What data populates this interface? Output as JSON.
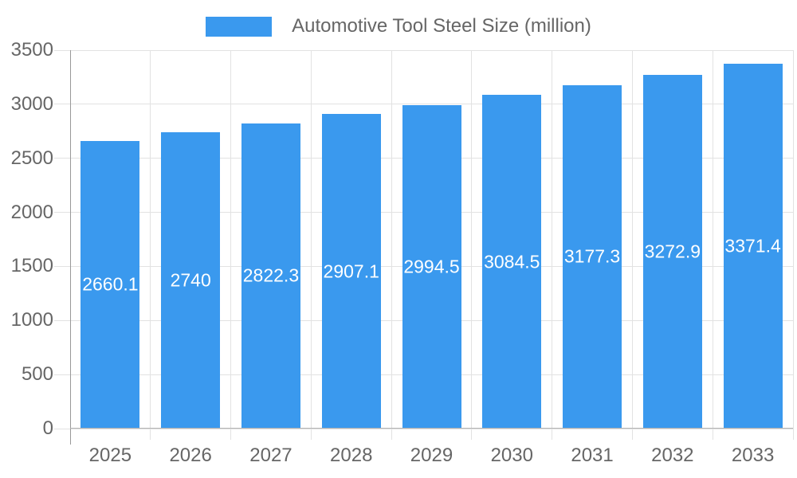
{
  "chart_data": {
    "type": "bar",
    "title": "Automotive Tool Steel Size (million)",
    "categories": [
      "2025",
      "2026",
      "2027",
      "2028",
      "2029",
      "2030",
      "2031",
      "2032",
      "2033"
    ],
    "values": [
      2660.1,
      2740,
      2822.3,
      2907.1,
      2994.5,
      3084.5,
      3177.3,
      3272.9,
      3371.4
    ],
    "bar_labels": [
      "2660.1",
      "2740",
      "2822.3",
      "2907.1",
      "2994.5",
      "3084.5",
      "3177.3",
      "3272.9",
      "3371.4"
    ],
    "xlabel": "",
    "ylabel": "",
    "ylim": [
      0,
      3500
    ],
    "yticks": [
      0,
      500,
      1000,
      1500,
      2000,
      2500,
      3000,
      3500
    ],
    "ytick_labels": [
      "0",
      "500",
      "1000",
      "1500",
      "2000",
      "2500",
      "3000",
      "3500"
    ],
    "grid": true,
    "legend_position": "top",
    "bar_color": "#3a99ee",
    "bar_value_label_color": "#ffffff",
    "axis_text_color": "#666666",
    "gridline_color": "#e2e2e2",
    "y_axis_line_color": "#999999",
    "x_axis_line_color": "#b3b3b3"
  },
  "legend": {
    "label": "Automotive Tool Steel Size (million)",
    "swatch_color": "#3a99ee"
  }
}
